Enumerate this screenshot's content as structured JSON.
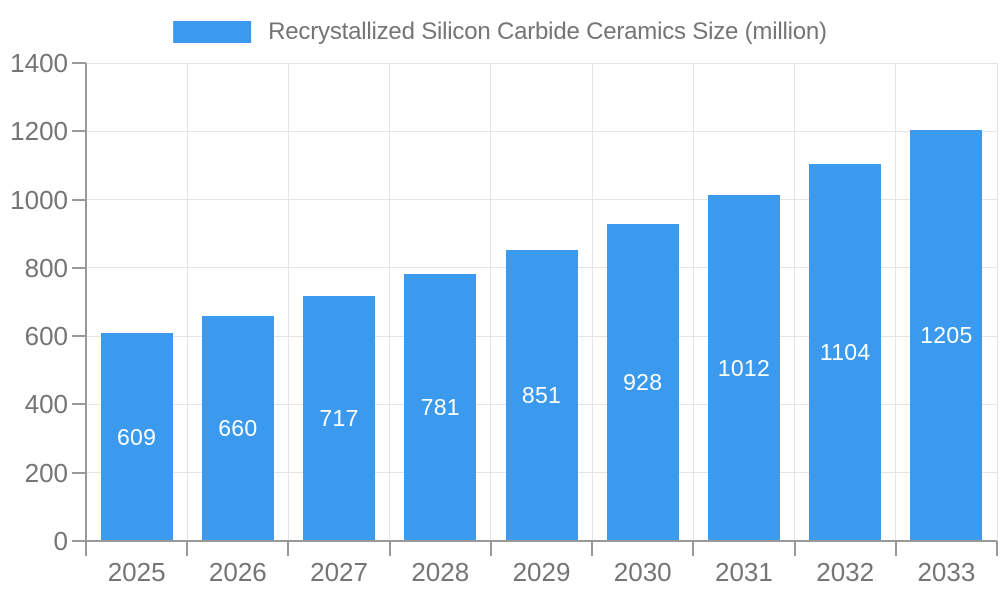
{
  "legend": {
    "label": "Recrystallized Silicon Carbide Ceramics Size (million)"
  },
  "colors": {
    "bar": "#3B99EE",
    "value_label": "#FFFFFF",
    "grid": "#E5E5E5",
    "axis": "#999999",
    "tick": "#999999",
    "text": "#757575",
    "background": "#FFFFFF"
  },
  "chart_data": {
    "type": "bar",
    "title": "",
    "xlabel": "",
    "ylabel": "",
    "categories": [
      "2025",
      "2026",
      "2027",
      "2028",
      "2029",
      "2030",
      "2031",
      "2032",
      "2033"
    ],
    "series": [
      {
        "name": "Recrystallized Silicon Carbide Ceramics Size (million)",
        "values": [
          609,
          660,
          717,
          781,
          851,
          928,
          1012,
          1104,
          1205
        ]
      }
    ],
    "value_labels_shown": true,
    "value_label_position": "inside-center",
    "ylim": [
      0,
      1400
    ],
    "y_ticks": [
      0,
      200,
      400,
      600,
      800,
      1000,
      1200,
      1400
    ],
    "grid": true,
    "legend_position": "top-center"
  }
}
